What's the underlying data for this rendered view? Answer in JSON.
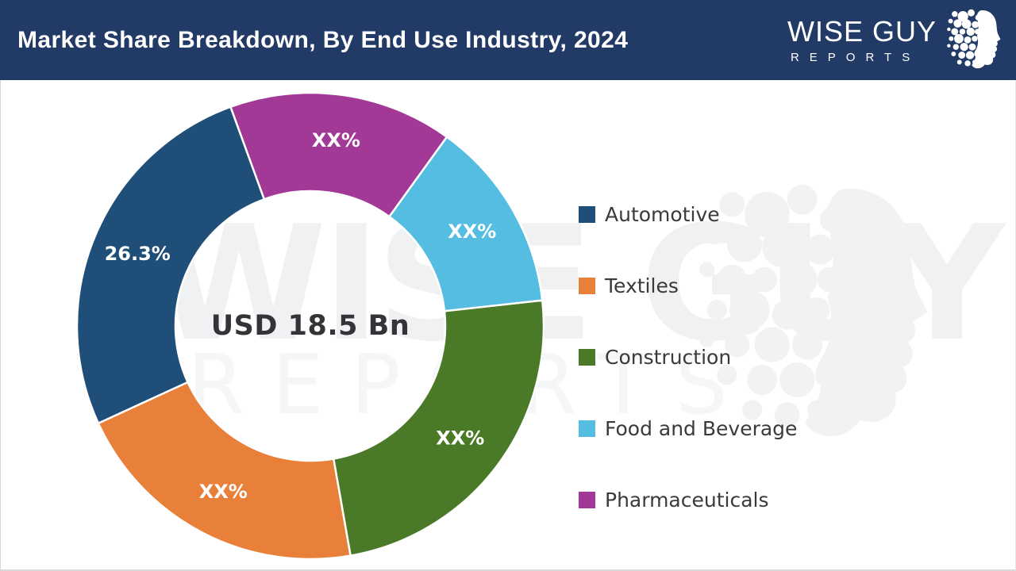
{
  "header": {
    "title": "Market Share Breakdown, By End Use Industry, 2024",
    "logo": {
      "name": "WISE GUY",
      "subtitle": "REPORTS"
    }
  },
  "watermark": {
    "line1": "WISE GUY",
    "line2": "REPORTS"
  },
  "chart_data": {
    "type": "pie",
    "subtype": "donut",
    "title": "Market Share Breakdown, By End Use Industry, 2024",
    "center_label": "USD 18.5 Bn",
    "start_angle_deg": 110,
    "direction": "counterclockwise",
    "legend_position": "right",
    "categories": [
      "Automotive",
      "Textiles",
      "Construction",
      "Food and Beverage",
      "Pharmaceuticals"
    ],
    "segments": [
      {
        "label": "Automotive",
        "value_pct": 26.3,
        "display": "26.3%",
        "color": "#1F4E79"
      },
      {
        "label": "Textiles",
        "value_pct": 20.9,
        "display": "XX%",
        "color": "#E8803A"
      },
      {
        "label": "Construction",
        "value_pct": 24.0,
        "display": "XX%",
        "color": "#4A7A28"
      },
      {
        "label": "Food and Beverage",
        "value_pct": 13.3,
        "display": "XX%",
        "color": "#55BCE2"
      },
      {
        "label": "Pharmaceuticals",
        "value_pct": 15.5,
        "display": "XX%",
        "color": "#A33997"
      }
    ]
  },
  "colors": {
    "header_bg": "#223A66",
    "canvas_bg": "#FFFFFF",
    "legend_text": "#3A3A3A",
    "center_text": "#333437",
    "segment_gap": "#FFFFFF",
    "watermark": "#F1F2F4"
  }
}
